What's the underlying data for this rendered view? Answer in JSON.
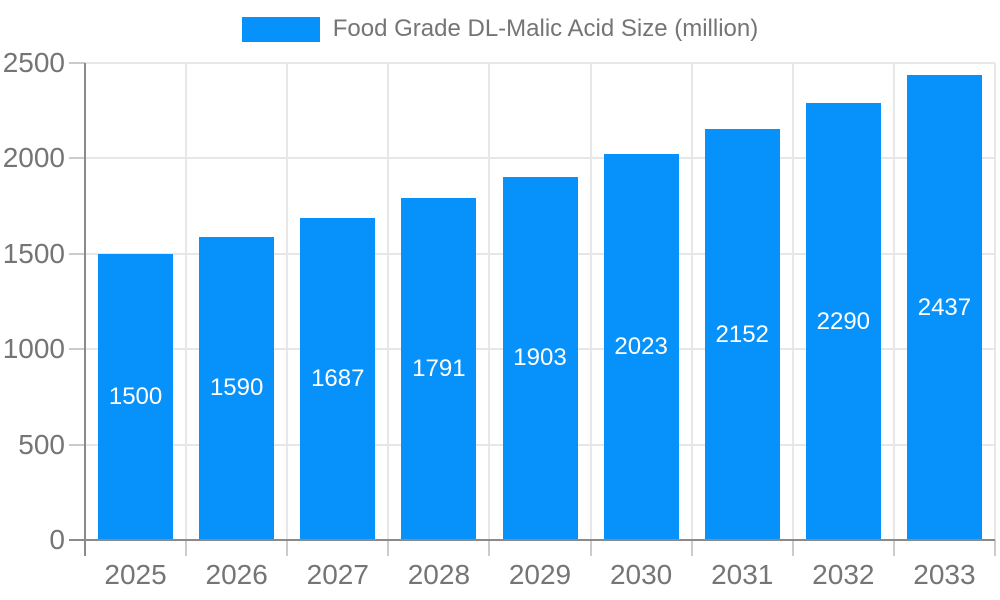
{
  "chart_data": {
    "type": "bar",
    "title": "Food Grade DL-Malic Acid Size (million)",
    "categories": [
      "2025",
      "2026",
      "2027",
      "2028",
      "2029",
      "2030",
      "2031",
      "2032",
      "2033"
    ],
    "values": [
      1500,
      1590,
      1687,
      1791,
      1903,
      2023,
      2152,
      2290,
      2437
    ],
    "yticks": [
      0,
      500,
      1000,
      1500,
      2000,
      2500
    ],
    "ylim": [
      0,
      2500
    ],
    "xlabel": "",
    "ylabel": "",
    "legend_position": "top-center",
    "grid": "horizontal-and-vertical",
    "value_labels": "inside-center",
    "colors": {
      "bar": "#0791fa",
      "value_label": "#ffffff",
      "axis_text": "#757575",
      "axis_line": "#8a8a8a",
      "tick_line": "#cbcbcb",
      "grid_line": "#e7e7e7",
      "background": "#ffffff"
    }
  }
}
